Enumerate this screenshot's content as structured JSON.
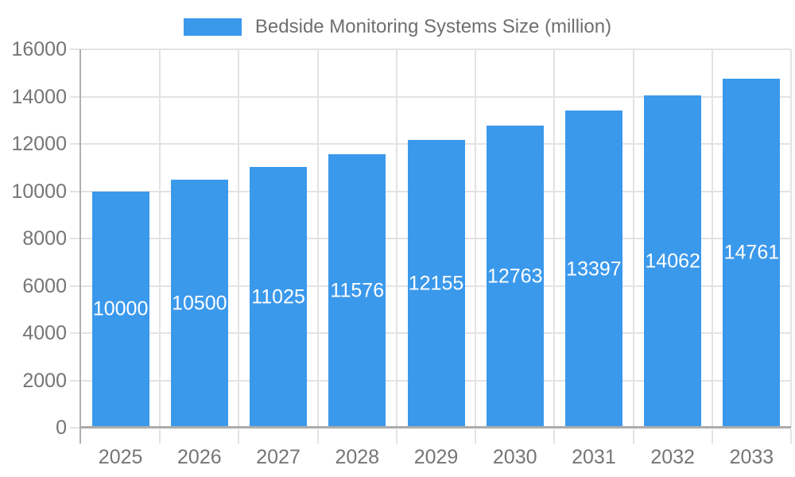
{
  "legend": {
    "label": "Bedside Monitoring Systems Size (million)"
  },
  "chart_data": {
    "type": "bar",
    "title": "Bedside Monitoring Systems Size (million)",
    "categories": [
      "2025",
      "2026",
      "2027",
      "2028",
      "2029",
      "2030",
      "2031",
      "2032",
      "2033"
    ],
    "values": [
      10000,
      10500,
      11025,
      11576,
      12155,
      12763,
      13397,
      14062,
      14761
    ],
    "series": [
      {
        "name": "Bedside Monitoring Systems Size (million)",
        "values": [
          10000,
          10500,
          11025,
          11576,
          12155,
          12763,
          13397,
          14062,
          14761
        ]
      }
    ],
    "xlabel": "",
    "ylabel": "",
    "ylim": [
      0,
      16000
    ],
    "yticks": [
      0,
      2000,
      4000,
      6000,
      8000,
      10000,
      12000,
      14000,
      16000
    ],
    "grid": true,
    "value_labels": "inside bars, vertically centered, white",
    "legend_position": "top-center",
    "colors": {
      "bar": "#3B99EC",
      "grid": "#E3E3E3",
      "axis": "#B0B0B0",
      "baseline": "#ACACAC",
      "text": "#757575",
      "bar_label": "#FFFFFF"
    }
  }
}
